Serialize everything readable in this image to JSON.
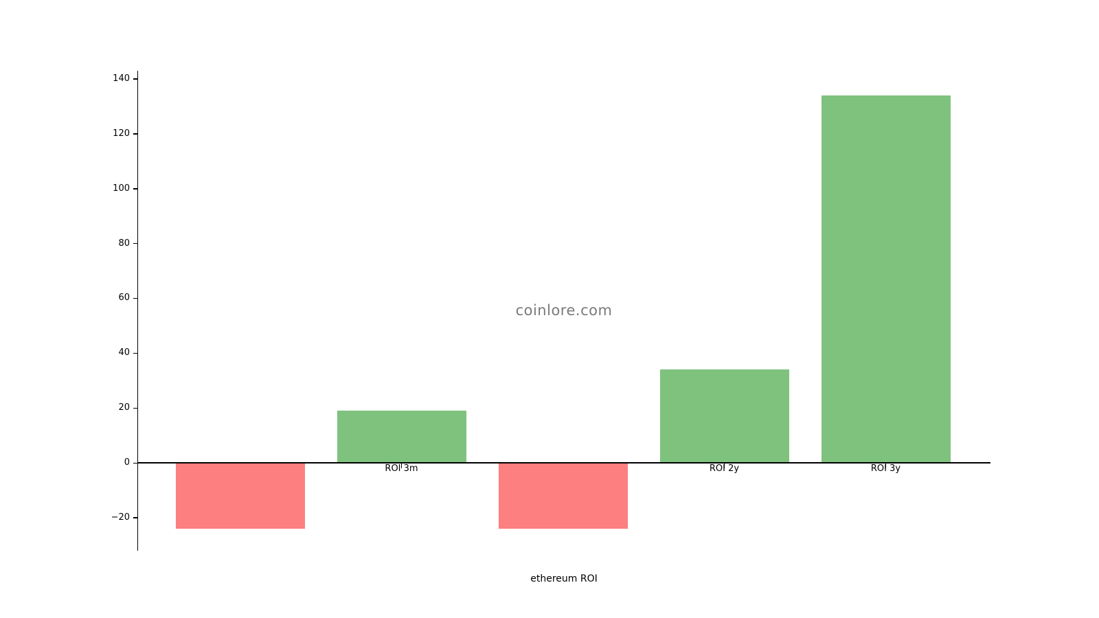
{
  "page": {
    "background_color": "#ffffff"
  },
  "chart_data": {
    "type": "bar",
    "title": "",
    "xlabel": "ethereum ROI",
    "ylabel": "",
    "watermark": "coinlore.com",
    "categories": [
      "",
      "ROI 3m",
      "",
      "ROI 2y",
      "ROI 3y"
    ],
    "values": [
      -24,
      19,
      -24,
      34,
      134
    ],
    "bar_colors": [
      "#fd7f7f",
      "#7ec27e",
      "#fd7f7f",
      "#7ec27e",
      "#7ec27e"
    ],
    "palette": {
      "positive_bar": "#7ec27e",
      "negative_bar": "#fd7f7f",
      "axis": "#000000",
      "tick_text": "#000000",
      "watermark_text": "#7a7a7a"
    },
    "y_ticks": [
      {
        "value": 140,
        "label": "140"
      },
      {
        "value": 120,
        "label": "120"
      },
      {
        "value": 100,
        "label": "100"
      },
      {
        "value": 80,
        "label": "80"
      },
      {
        "value": 60,
        "label": "60"
      },
      {
        "value": 40,
        "label": "40"
      },
      {
        "value": 20,
        "label": "20"
      },
      {
        "value": 0,
        "label": "0"
      },
      {
        "value": -20,
        "label": "−20"
      }
    ],
    "ylim": [
      -32,
      143
    ],
    "grid": false,
    "legend": "none"
  }
}
